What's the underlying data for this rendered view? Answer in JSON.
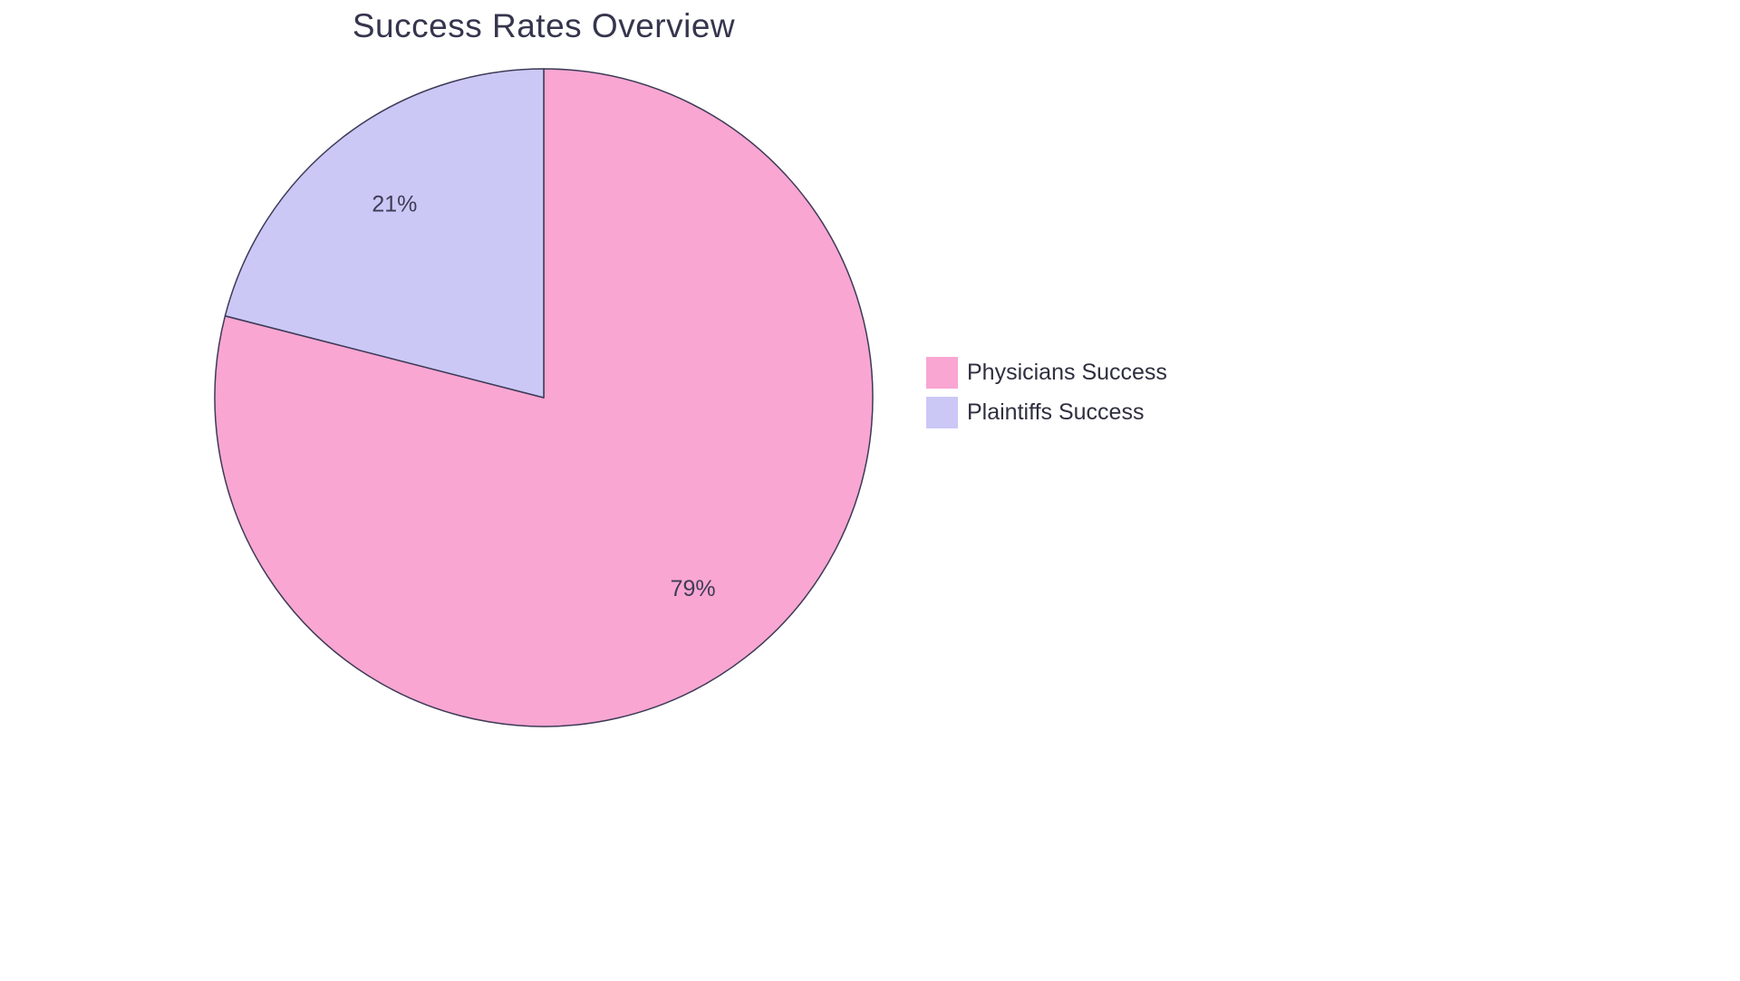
{
  "chart_data": {
    "type": "pie",
    "title": "Success Rates Overview",
    "slices": [
      {
        "label": "Physicians Success",
        "value": 79,
        "display": "79%",
        "color": "#f9a6d2"
      },
      {
        "label": "Plaintiffs Success",
        "value": 21,
        "display": "21%",
        "color": "#cbc8f6"
      }
    ],
    "start_angle_deg": 0,
    "direction": "clockwise",
    "labels_inside": true,
    "legend_position": "right",
    "stroke": {
      "color": "#3d3a56",
      "width": 1.5
    },
    "background": "#ffffff"
  }
}
